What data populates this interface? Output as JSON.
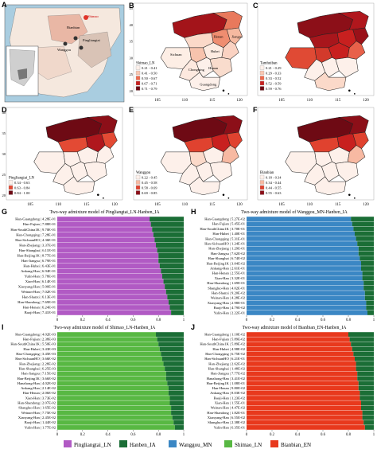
{
  "colors": {
    "pingliangtai": "#b15ac4",
    "hanben": "#1b6e36",
    "wanggou": "#3b87c4",
    "shimao": "#58b843",
    "bianbian": "#e8391d",
    "water": "#a9cde0",
    "land_light": "#f5e8de",
    "map_red_low": "#fcefe9",
    "map_red_high": "#6e0a14"
  },
  "panel_letters": [
    "A",
    "B",
    "C",
    "D",
    "E",
    "F",
    "G",
    "H",
    "I",
    "J"
  ],
  "map_A": {
    "labels": [
      "Shimao",
      "Bianbian",
      "Pingliangtai",
      "Wanggou"
    ],
    "scalebar": "0 100 200"
  },
  "map_B": {
    "province_labels": [
      "Henan",
      "Sichuan",
      "Hubei",
      "Chongqing",
      "Hunan",
      "Guangdong",
      "Jiangsu"
    ],
    "legend_title": "Shimao_LN",
    "legend_items": [
      "0.21 - 0.41",
      "0.41 - 0.50",
      "0.50 - 0.67",
      "0.67 - 0.71",
      "0.71 - 0.79"
    ],
    "ticks_x": [
      "105",
      "110",
      "115",
      "120"
    ],
    "ticks_y": [
      "45",
      "40",
      "35",
      "30",
      "25",
      "20"
    ]
  },
  "map_C": {
    "legend_title": "Tamhuiban",
    "legend_items": [
      "0.21 - 0.29",
      "0.29 - 0.33",
      "0.33 - 0.52",
      "0.52 - 0.59",
      "0.59 - 0.76"
    ],
    "ticks_x": [
      "105",
      "110",
      "115",
      "120"
    ]
  },
  "map_D": {
    "legend_title": "Pingliangtai_LN",
    "legend_items": [
      "0.34 - 0.63",
      "0.63 - 0.84",
      "0.84 - 1.00"
    ],
    "ticks_x": [
      "105",
      "110",
      "115",
      "120"
    ],
    "ticks_y": [
      "40",
      "35",
      "30",
      "25",
      "20"
    ]
  },
  "map_E": {
    "legend_title": "Wanggou",
    "legend_items": [
      "0.22 - 0.45",
      "0.45 - 0.58",
      "0.58 - 0.69",
      "0.69 - 0.85"
    ],
    "ticks_x": [
      "105",
      "110",
      "115",
      "120"
    ]
  },
  "map_F": {
    "legend_title": "Bianbian",
    "legend_items": [
      "0.18 - 0.34",
      "0.34 - 0.44",
      "0.44 - 0.55",
      "0.55 - 0.63"
    ],
    "ticks_x": [
      "105",
      "110",
      "115",
      "120"
    ]
  },
  "chart_data": [
    {
      "type": "bar",
      "panel": "G",
      "title": "Two-way admixture model of Pingliangtai_LN-Hanben_IA",
      "categories": [
        "Han-Guangdong",
        "Han-Fujian",
        "Han-SouthChina1K",
        "Han-Chongqing",
        "Han-SichuanHO",
        "Han-Zhejiang",
        "Han-Shanghai",
        "Han-Beijing1K",
        "Han-Jiangsu",
        "Han-Hubei",
        "Ankang-Han",
        "Yulin-Han",
        "Xian-Han",
        "Xianyang-Han",
        "Weinan-Han",
        "Han-Shanxi",
        "Han-Shandong",
        "Han-Henan",
        "Baoji-Han"
      ],
      "pvalues": [
        "4.28E-01",
        "7.88E-01",
        "9.70E-01",
        "7.28E-01",
        "4.36E-01",
        "3.37E-01",
        "6.11E-01",
        "8.77E-01",
        "6.79E-01",
        "6.43E-01",
        "6.94E-01",
        "5.78E-01",
        "6.14E-01",
        "5.00E-01",
        "7.02E-01",
        "6.13E-01",
        "7.69E-01",
        "6.24E-01",
        "7.41E-01"
      ],
      "series": [
        {
          "name": "Pingliangtai_LN",
          "values": [
            0.73,
            0.74,
            0.75,
            0.76,
            0.77,
            0.78,
            0.79,
            0.8,
            0.8,
            0.81,
            0.82,
            0.83,
            0.84,
            0.85,
            0.86,
            0.87,
            0.88,
            0.89,
            0.9
          ]
        },
        {
          "name": "Hanben_IA",
          "values": [
            0.27,
            0.26,
            0.25,
            0.24,
            0.23,
            0.22,
            0.21,
            0.2,
            0.2,
            0.19,
            0.18,
            0.17,
            0.16,
            0.15,
            0.14,
            0.13,
            0.12,
            0.11,
            0.1
          ]
        }
      ],
      "xticks": [
        "0",
        "0.2",
        "0.4",
        "0.6",
        "0.8",
        "1"
      ]
    },
    {
      "type": "bar",
      "panel": "H",
      "title": "Two-way admixture model of Wanggou_MN-Hanben_IA",
      "categories": [
        "Han-Guangdong",
        "Han-Fujian",
        "Han-SouthChina1K",
        "Han-Hubei",
        "Han-Chongqing",
        "Han-SichuanHO",
        "Han-Zhejiang",
        "Han-Jiangsu",
        "Han-Shanghai",
        "Han-Beijing1K",
        "Ankang-Han",
        "Han-Henan",
        "Xian-Han",
        "Han-Shandong",
        "Shangluo-Han",
        "Han-Shanxi",
        "Weinan-Han",
        "Xianyang-Han",
        "Baoji-Han",
        "Yulin-Han"
      ],
      "pvalues": [
        "5.27E-02",
        "5.45E-01",
        "3.70E-01",
        "1.40E-01",
        "5.31E-01",
        "1.24E-01",
        "1.29E-01",
        "7.62E-02",
        "6.74E-02",
        "3.04E-02",
        "2.61E-01",
        "2.55E-01",
        "3.32E-01",
        "1.69E-01",
        "4.02E-01",
        "9.20E-02",
        "4.28E-02",
        "2.98E-01",
        "4.79E-02",
        "2.22E-01"
      ],
      "series": [
        {
          "name": "Wanggou_MN",
          "values": [
            0.82,
            0.83,
            0.84,
            0.85,
            0.86,
            0.87,
            0.88,
            0.88,
            0.89,
            0.9,
            0.9,
            0.91,
            0.91,
            0.92,
            0.92,
            0.93,
            0.93,
            0.94,
            0.94,
            0.95
          ]
        },
        {
          "name": "Hanben_IA",
          "values": [
            0.18,
            0.17,
            0.16,
            0.15,
            0.14,
            0.13,
            0.12,
            0.12,
            0.11,
            0.1,
            0.1,
            0.09,
            0.09,
            0.08,
            0.08,
            0.07,
            0.07,
            0.06,
            0.06,
            0.05
          ]
        }
      ],
      "xticks": [
        "0",
        "0.2",
        "0.4",
        "0.6",
        "0.8",
        "1"
      ]
    },
    {
      "type": "bar",
      "panel": "I",
      "title": "Two-way admixture model of Shimao_LN-Hanben_IA",
      "categories": [
        "Han-Guangdong",
        "Han-Fujian",
        "Han-SouthChina1K",
        "Han-Hubei",
        "Han-Chongqing",
        "Han-SichuanHO",
        "Han-Zhejiang",
        "Han-Shanghai",
        "Han-Jiangsu",
        "Han-Beijing1K",
        "Hanzhong-Han",
        "Ankang-Han",
        "Han-Henan",
        "Xian-Han",
        "Han-Shandong",
        "Shangluo-Han",
        "Weinan-Han",
        "Xianyang-Han",
        "Baoji-Han",
        "Yulin-Han"
      ],
      "pvalues": [
        "4.02E-03",
        "2.38E-03",
        "5.50E-03",
        "3.43E-03",
        "3.45E-03",
        "3.66E-02",
        "2.28E-02",
        "6.25E-03",
        "7.15E-02",
        "3.66E-02",
        "4.02E-02",
        "2.14E-02",
        "2.06E-02",
        "3.73E-02",
        "2.07E-02",
        "1.65E-02",
        "7.75E-02",
        "2.45E-02",
        "1.44E-02",
        "1.77E-02"
      ],
      "series": [
        {
          "name": "Shimao_LN",
          "values": [
            0.78,
            0.79,
            0.8,
            0.81,
            0.82,
            0.83,
            0.84,
            0.85,
            0.86,
            0.86,
            0.87,
            0.88,
            0.88,
            0.89,
            0.89,
            0.9,
            0.9,
            0.91,
            0.92,
            0.93
          ]
        },
        {
          "name": "Hanben_IA",
          "values": [
            0.22,
            0.21,
            0.2,
            0.19,
            0.18,
            0.17,
            0.16,
            0.15,
            0.14,
            0.14,
            0.13,
            0.12,
            0.12,
            0.11,
            0.11,
            0.1,
            0.1,
            0.09,
            0.08,
            0.07
          ]
        }
      ],
      "xticks": [
        "0",
        "0.2",
        "0.4",
        "0.6",
        "0.8",
        "1"
      ]
    },
    {
      "type": "bar",
      "panel": "J",
      "title": "Two-way admixture model of Bianbian_EN-Hanben_IA",
      "categories": [
        "Han-Guangdong",
        "Han-Fujian",
        "Han-SouthChina1K",
        "Han-Hubei",
        "Han-Chongqing",
        "Han-SichuanHO",
        "Han-Zhejiang",
        "Han-Shanghai",
        "Han-Jiangsu",
        "Hanzhong-Han",
        "Han-Beijing1K",
        "Han-Henan",
        "Ankang-Han",
        "Baoji-Han",
        "Xian-Han",
        "Weinan-Han",
        "Han-Shandong",
        "Xianyang-Han",
        "Shangluo-Han",
        "Yulin-Han"
      ],
      "pvalues": [
        "1.10E-02",
        "5.89E-02",
        "5.89E-02",
        "4.98E-02",
        "6.75E-02",
        "6.21E-01",
        "2.62E-02",
        "1.48E-02",
        "7.77E-02",
        "3.41E-02",
        "1.08E-01",
        "9.80E-02",
        "8.03E-02",
        "1.23E-02",
        "1.55E-01",
        "4.47E-02",
        "1.82E-01",
        "6.55E-02",
        "2.38E-02",
        "6.35E-01"
      ],
      "series": [
        {
          "name": "Bianbian_EN",
          "values": [
            0.8,
            0.81,
            0.82,
            0.83,
            0.84,
            0.85,
            0.86,
            0.86,
            0.87,
            0.87,
            0.88,
            0.88,
            0.89,
            0.89,
            0.9,
            0.9,
            0.91,
            0.91,
            0.92,
            0.93
          ]
        },
        {
          "name": "Hanben_IA",
          "values": [
            0.2,
            0.19,
            0.18,
            0.17,
            0.16,
            0.15,
            0.14,
            0.14,
            0.13,
            0.13,
            0.12,
            0.12,
            0.11,
            0.11,
            0.1,
            0.1,
            0.09,
            0.09,
            0.08,
            0.07
          ]
        }
      ],
      "xticks": [
        "0",
        "0.2",
        "0.4",
        "0.6",
        "0.8",
        "1"
      ]
    }
  ],
  "legend": [
    {
      "label": "Pingliangtai_LN",
      "color": "#b15ac4"
    },
    {
      "label": "Hanben_IA",
      "color": "#1b6e36"
    },
    {
      "label": "Wanggou_MN",
      "color": "#3b87c4"
    },
    {
      "label": "Shimao_LN",
      "color": "#58b843"
    },
    {
      "label": "Bianbian_EN",
      "color": "#e8391d"
    }
  ]
}
